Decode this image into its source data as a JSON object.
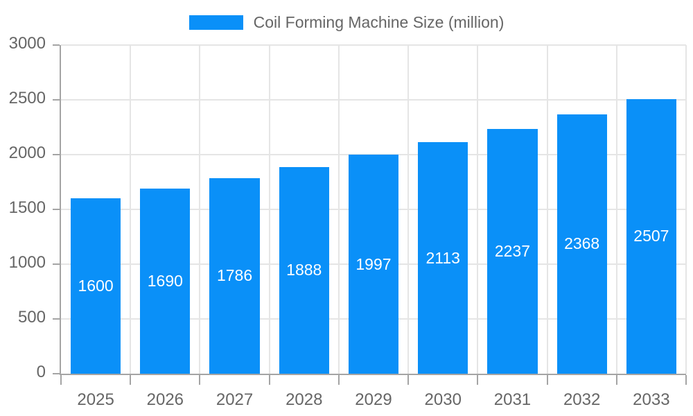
{
  "legend": {
    "label": "Coil Forming Machine Size (million)"
  },
  "chart_data": {
    "type": "bar",
    "title": "Coil Forming Machine Size (million)",
    "categories": [
      "2025",
      "2026",
      "2027",
      "2028",
      "2029",
      "2030",
      "2031",
      "2032",
      "2033"
    ],
    "series": [
      {
        "name": "Coil Forming Machine Size (million)",
        "values": [
          1600,
          1690,
          1786,
          1888,
          1997,
          2113,
          2237,
          2368,
          2507
        ]
      }
    ],
    "values": [
      1600,
      1690,
      1786,
      1888,
      1997,
      2113,
      2237,
      2368,
      2507
    ],
    "bar_labels": [
      "1600",
      "1690",
      "1786",
      "1888",
      "1997",
      "2113",
      "2237",
      "2368",
      "2507"
    ],
    "xlabel": "",
    "ylabel": "",
    "ylim": [
      0,
      3000
    ],
    "yticks": [
      0,
      500,
      1000,
      1500,
      2000,
      2500,
      3000
    ],
    "grid": "both",
    "legend_position": "top",
    "colors": {
      "bar": "#0a90f8",
      "bar_label_text": "#ffffff",
      "axis_line": "#a4a4a4",
      "gridline": "#e5e5e5",
      "tick_text": "#666666"
    }
  }
}
